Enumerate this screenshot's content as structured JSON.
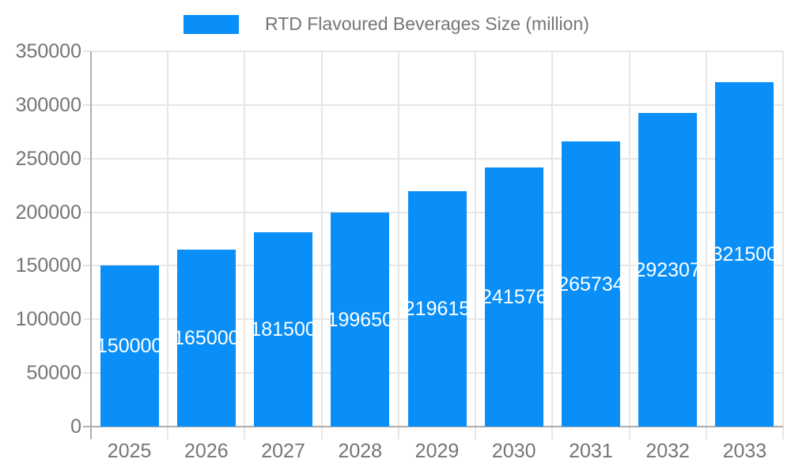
{
  "chart_data": {
    "type": "bar",
    "title": "RTD Flavoured Beverages Size (million)",
    "categories": [
      "2025",
      "2026",
      "2027",
      "2028",
      "2029",
      "2030",
      "2031",
      "2032",
      "2033"
    ],
    "values": [
      150000,
      165000,
      181500,
      199650,
      219615,
      241576,
      265734,
      292307,
      321500
    ],
    "bar_labels": [
      "150000",
      "165000",
      "181500",
      "199650",
      "219615",
      "241576",
      "265734",
      "292307",
      "321500"
    ],
    "xlabel": "",
    "ylabel": "",
    "ylim": [
      0,
      350000
    ],
    "yticks": [
      0,
      50000,
      100000,
      150000,
      200000,
      250000,
      300000,
      350000
    ],
    "grid": true,
    "legend_position": "top",
    "colors": {
      "bar": "#0a8ff8",
      "bar_value_label": "#ffffff",
      "axis_text": "#757575",
      "grid_line": "#e6e6e6",
      "axis_line": "#aeaeae",
      "background": "#ffffff"
    }
  }
}
